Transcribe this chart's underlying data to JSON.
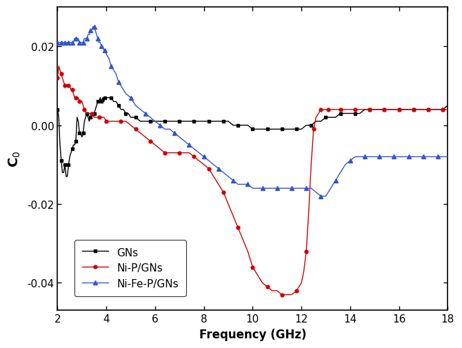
{
  "title": "",
  "xlabel": "Frequency (GHz)",
  "ylabel": "C$_0$",
  "xlim": [
    2,
    18
  ],
  "ylim": [
    -0.047,
    0.03
  ],
  "yticks": [
    -0.04,
    -0.02,
    0.0,
    0.02
  ],
  "xticks": [
    2,
    4,
    6,
    8,
    10,
    12,
    14,
    16,
    18
  ],
  "bg_color": "#ffffff",
  "series": [
    {
      "label": "GNs",
      "color": "#000000",
      "marker": "s",
      "markersize": 3.5,
      "linewidth": 1.0,
      "markevery": 3,
      "x": [
        2.0,
        2.05,
        2.1,
        2.15,
        2.2,
        2.25,
        2.3,
        2.35,
        2.4,
        2.45,
        2.5,
        2.55,
        2.6,
        2.65,
        2.7,
        2.75,
        2.8,
        2.85,
        2.9,
        2.95,
        3.0,
        3.05,
        3.1,
        3.15,
        3.2,
        3.25,
        3.3,
        3.35,
        3.4,
        3.45,
        3.5,
        3.55,
        3.6,
        3.65,
        3.7,
        3.75,
        3.8,
        3.85,
        3.9,
        3.95,
        4.0,
        4.1,
        4.2,
        4.3,
        4.4,
        4.5,
        4.6,
        4.7,
        4.8,
        4.9,
        5.0,
        5.2,
        5.4,
        5.6,
        5.8,
        6.0,
        6.2,
        6.4,
        6.6,
        6.8,
        7.0,
        7.2,
        7.4,
        7.6,
        7.8,
        8.0,
        8.2,
        8.4,
        8.6,
        8.8,
        9.0,
        9.2,
        9.4,
        9.6,
        9.8,
        10.0,
        10.2,
        10.4,
        10.6,
        10.8,
        11.0,
        11.2,
        11.4,
        11.6,
        11.8,
        12.0,
        12.2,
        12.4,
        12.6,
        12.8,
        13.0,
        13.2,
        13.4,
        13.6,
        13.8,
        14.0,
        14.2,
        14.4,
        14.6,
        14.8,
        15.0,
        15.2,
        15.4,
        15.6,
        15.8,
        16.0,
        16.2,
        16.4,
        16.6,
        16.8,
        17.0,
        17.2,
        17.4,
        17.6,
        17.8,
        18.0
      ],
      "y": [
        0.004,
        0.002,
        -0.005,
        -0.009,
        -0.012,
        -0.012,
        -0.01,
        -0.013,
        -0.013,
        -0.01,
        -0.008,
        -0.007,
        -0.006,
        -0.005,
        -0.005,
        -0.004,
        0.002,
        0.001,
        -0.002,
        -0.002,
        -0.003,
        -0.002,
        0.001,
        0.002,
        0.003,
        0.002,
        0.001,
        0.002,
        0.002,
        0.003,
        0.003,
        0.004,
        0.005,
        0.006,
        0.006,
        0.007,
        0.006,
        0.007,
        0.006,
        0.007,
        0.007,
        0.007,
        0.007,
        0.006,
        0.006,
        0.005,
        0.004,
        0.004,
        0.003,
        0.003,
        0.002,
        0.002,
        0.001,
        0.001,
        0.001,
        0.001,
        0.001,
        0.001,
        0.001,
        0.001,
        0.001,
        0.001,
        0.001,
        0.001,
        0.001,
        0.001,
        0.001,
        0.001,
        0.001,
        0.001,
        0.001,
        0.0,
        0.0,
        0.0,
        0.0,
        -0.001,
        -0.001,
        -0.001,
        -0.001,
        -0.001,
        -0.001,
        -0.001,
        -0.001,
        -0.001,
        -0.001,
        -0.001,
        0.0,
        0.0,
        0.001,
        0.001,
        0.002,
        0.002,
        0.002,
        0.003,
        0.003,
        0.003,
        0.003,
        0.003,
        0.004,
        0.004,
        0.004,
        0.004,
        0.004,
        0.004,
        0.004,
        0.004,
        0.004,
        0.004,
        0.004,
        0.004,
        0.004,
        0.004,
        0.004,
        0.004,
        0.004,
        0.005
      ]
    },
    {
      "label": "Ni-P/GNs",
      "color": "#cc0000",
      "marker": "o",
      "markersize": 3.5,
      "linewidth": 1.0,
      "markevery": 3,
      "x": [
        2.0,
        2.05,
        2.1,
        2.15,
        2.2,
        2.25,
        2.3,
        2.35,
        2.4,
        2.45,
        2.5,
        2.55,
        2.6,
        2.65,
        2.7,
        2.75,
        2.8,
        2.85,
        2.9,
        2.95,
        3.0,
        3.1,
        3.2,
        3.3,
        3.4,
        3.5,
        3.6,
        3.7,
        3.8,
        3.9,
        4.0,
        4.2,
        4.4,
        4.6,
        4.8,
        5.0,
        5.2,
        5.4,
        5.6,
        5.8,
        6.0,
        6.2,
        6.4,
        6.6,
        6.8,
        7.0,
        7.2,
        7.4,
        7.6,
        7.8,
        8.0,
        8.2,
        8.4,
        8.6,
        8.8,
        9.0,
        9.2,
        9.4,
        9.6,
        9.8,
        10.0,
        10.2,
        10.4,
        10.6,
        10.8,
        11.0,
        11.2,
        11.4,
        11.6,
        11.8,
        12.0,
        12.1,
        12.2,
        12.3,
        12.4,
        12.5,
        12.6,
        12.7,
        12.8,
        12.9,
        13.0,
        13.1,
        13.2,
        13.4,
        13.6,
        13.8,
        14.0,
        14.2,
        14.4,
        14.6,
        14.8,
        15.0,
        15.2,
        15.4,
        15.6,
        15.8,
        16.0,
        16.2,
        16.4,
        16.6,
        16.8,
        17.0,
        17.2,
        17.4,
        17.6,
        17.8,
        18.0
      ],
      "y": [
        0.012,
        0.015,
        0.014,
        0.013,
        0.012,
        0.011,
        0.01,
        0.01,
        0.01,
        0.01,
        0.01,
        0.009,
        0.009,
        0.008,
        0.007,
        0.007,
        0.007,
        0.007,
        0.006,
        0.006,
        0.006,
        0.004,
        0.003,
        0.003,
        0.003,
        0.002,
        0.002,
        0.002,
        0.002,
        0.002,
        0.001,
        0.001,
        0.001,
        0.001,
        0.001,
        0.0,
        -0.001,
        -0.002,
        -0.003,
        -0.004,
        -0.005,
        -0.006,
        -0.007,
        -0.007,
        -0.007,
        -0.007,
        -0.007,
        -0.007,
        -0.008,
        -0.009,
        -0.01,
        -0.011,
        -0.013,
        -0.015,
        -0.017,
        -0.02,
        -0.023,
        -0.026,
        -0.029,
        -0.032,
        -0.036,
        -0.038,
        -0.04,
        -0.041,
        -0.042,
        -0.042,
        -0.043,
        -0.043,
        -0.043,
        -0.042,
        -0.04,
        -0.037,
        -0.032,
        -0.022,
        -0.01,
        -0.001,
        0.002,
        0.003,
        0.004,
        0.004,
        0.004,
        0.004,
        0.004,
        0.004,
        0.004,
        0.004,
        0.004,
        0.004,
        0.004,
        0.004,
        0.004,
        0.004,
        0.004,
        0.004,
        0.004,
        0.004,
        0.004,
        0.004,
        0.004,
        0.004,
        0.004,
        0.004,
        0.004,
        0.004,
        0.004,
        0.004,
        0.004
      ]
    },
    {
      "label": "Ni-Fe-P/GNs",
      "color": "#3355cc",
      "marker": "^",
      "markersize": 4,
      "linewidth": 1.0,
      "markevery": 3,
      "x": [
        2.0,
        2.05,
        2.1,
        2.15,
        2.2,
        2.25,
        2.3,
        2.35,
        2.4,
        2.45,
        2.5,
        2.55,
        2.6,
        2.65,
        2.7,
        2.75,
        2.8,
        2.85,
        2.9,
        2.95,
        3.0,
        3.05,
        3.1,
        3.15,
        3.2,
        3.25,
        3.3,
        3.35,
        3.4,
        3.45,
        3.5,
        3.55,
        3.6,
        3.65,
        3.7,
        3.75,
        3.8,
        3.85,
        3.9,
        3.95,
        4.0,
        4.1,
        4.2,
        4.3,
        4.4,
        4.5,
        4.6,
        4.8,
        5.0,
        5.2,
        5.4,
        5.6,
        5.8,
        6.0,
        6.2,
        6.4,
        6.6,
        6.8,
        7.0,
        7.2,
        7.4,
        7.6,
        7.8,
        8.0,
        8.2,
        8.4,
        8.6,
        8.8,
        9.0,
        9.2,
        9.4,
        9.6,
        9.8,
        10.0,
        10.2,
        10.4,
        10.6,
        10.8,
        11.0,
        11.2,
        11.4,
        11.6,
        11.8,
        12.0,
        12.2,
        12.4,
        12.6,
        12.8,
        13.0,
        13.2,
        13.4,
        13.6,
        13.8,
        14.0,
        14.2,
        14.4,
        14.6,
        14.8,
        15.0,
        15.2,
        15.4,
        15.6,
        15.8,
        16.0,
        16.2,
        16.4,
        16.6,
        16.8,
        17.0,
        17.2,
        17.4,
        17.6,
        17.8,
        18.0
      ],
      "y": [
        0.021,
        0.021,
        0.021,
        0.021,
        0.021,
        0.021,
        0.021,
        0.021,
        0.021,
        0.021,
        0.021,
        0.021,
        0.021,
        0.021,
        0.022,
        0.022,
        0.022,
        0.022,
        0.021,
        0.021,
        0.021,
        0.021,
        0.022,
        0.022,
        0.022,
        0.023,
        0.023,
        0.024,
        0.024,
        0.025,
        0.025,
        0.024,
        0.023,
        0.022,
        0.021,
        0.021,
        0.02,
        0.02,
        0.019,
        0.019,
        0.018,
        0.017,
        0.015,
        0.014,
        0.013,
        0.011,
        0.01,
        0.008,
        0.007,
        0.005,
        0.004,
        0.003,
        0.002,
        0.001,
        0.0,
        -0.001,
        -0.001,
        -0.002,
        -0.003,
        -0.004,
        -0.005,
        -0.006,
        -0.007,
        -0.008,
        -0.009,
        -0.01,
        -0.011,
        -0.012,
        -0.013,
        -0.014,
        -0.015,
        -0.015,
        -0.015,
        -0.016,
        -0.016,
        -0.016,
        -0.016,
        -0.016,
        -0.016,
        -0.016,
        -0.016,
        -0.016,
        -0.016,
        -0.016,
        -0.016,
        -0.016,
        -0.017,
        -0.018,
        -0.018,
        -0.016,
        -0.014,
        -0.012,
        -0.01,
        -0.009,
        -0.008,
        -0.008,
        -0.008,
        -0.008,
        -0.008,
        -0.008,
        -0.008,
        -0.008,
        -0.008,
        -0.008,
        -0.008,
        -0.008,
        -0.008,
        -0.008,
        -0.008,
        -0.008,
        -0.008,
        -0.008,
        -0.008,
        -0.008
      ]
    }
  ]
}
